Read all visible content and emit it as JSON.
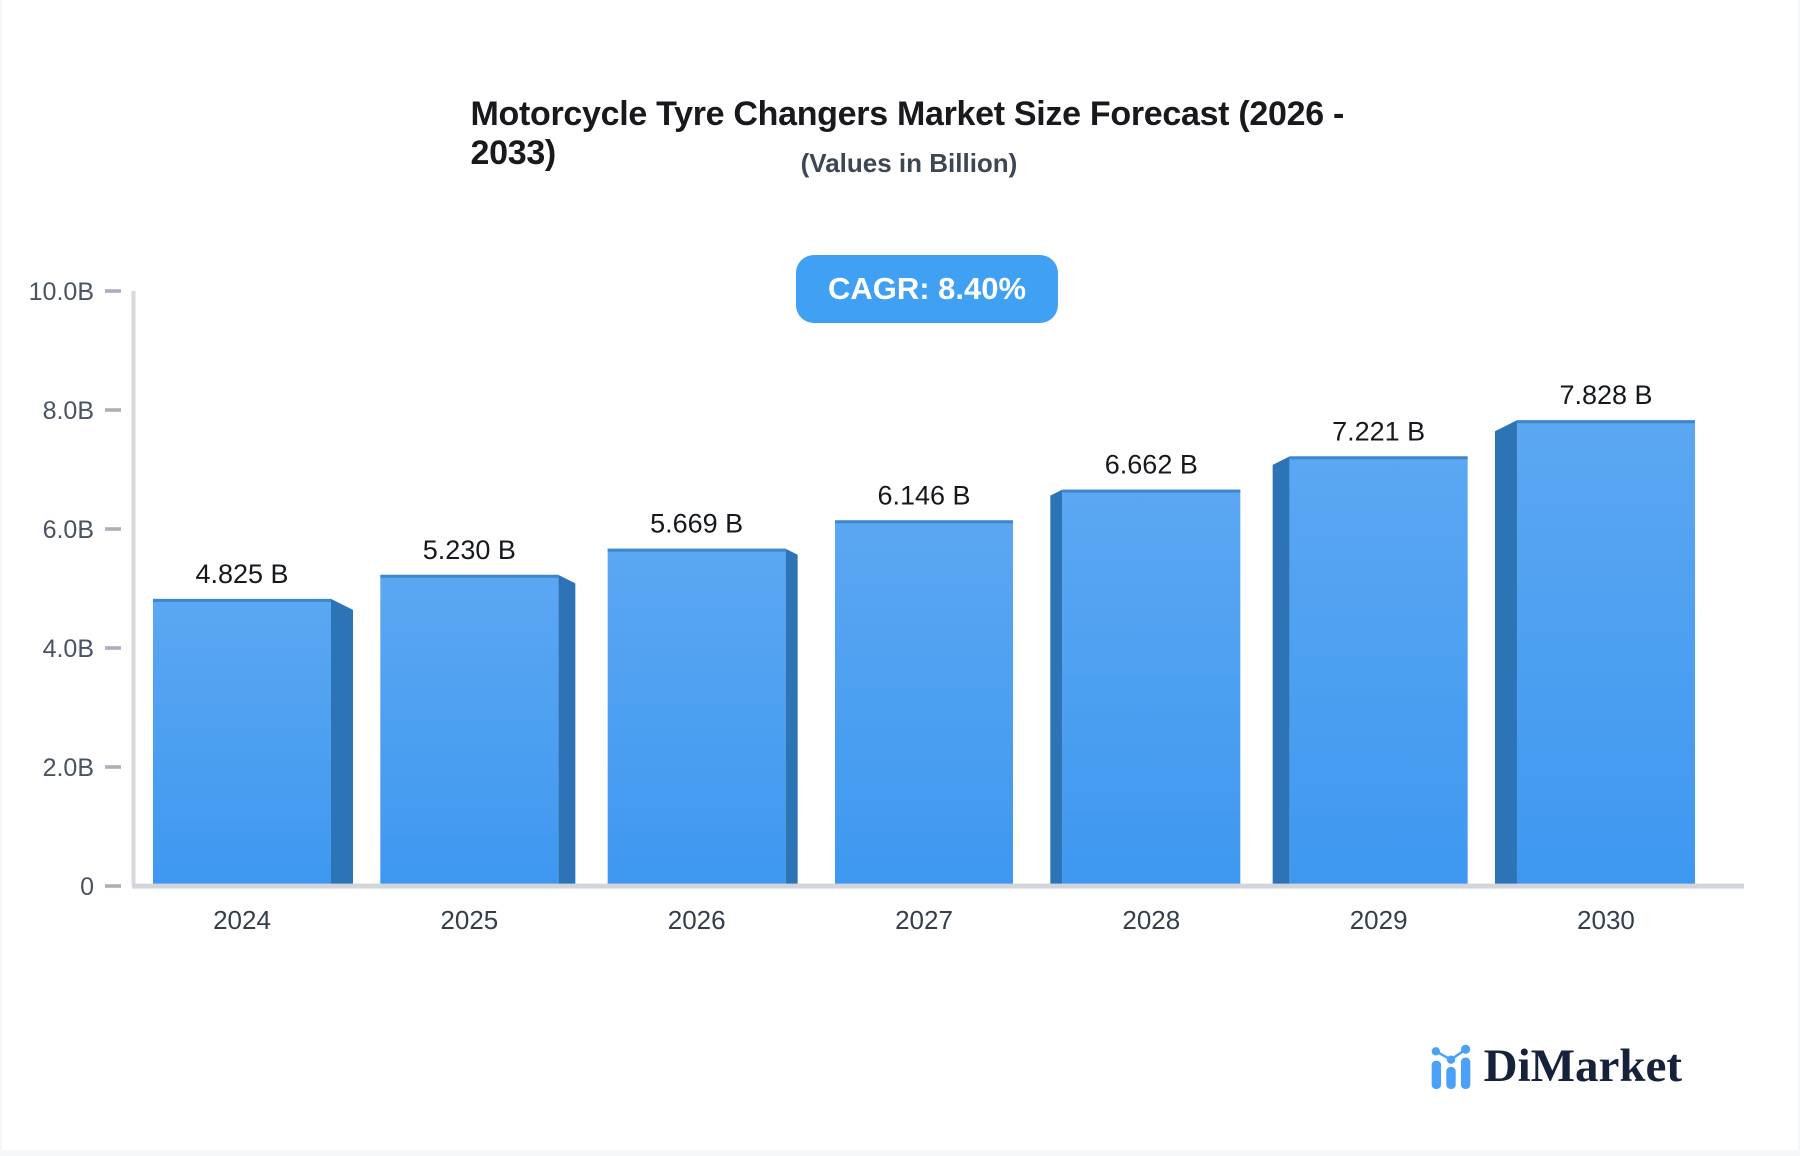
{
  "title": "Motorcycle Tyre Changers Market Size Forecast (2026 - 2033)",
  "subtitle": "(Values in Billion)",
  "badge": {
    "label": "CAGR: 8.40%",
    "color": "#3fa0f4"
  },
  "brand": {
    "name": "DiMarket",
    "icon": "mini-bar-chart-with-dots"
  },
  "chart_data": {
    "type": "bar",
    "title": "Motorcycle Tyre Changers Market Size Forecast (2026 - 2033)",
    "subtitle": "(Values in Billion)",
    "xlabel": "",
    "ylabel": "",
    "categories": [
      "2024",
      "2025",
      "2026",
      "2027",
      "2028",
      "2029",
      "2030"
    ],
    "values": [
      4.825,
      5.23,
      5.669,
      6.146,
      6.662,
      7.221,
      7.828
    ],
    "value_labels": [
      "4.825 B",
      "5.230 B",
      "5.669 B",
      "6.146 B",
      "6.662 B",
      "7.221 B",
      "7.828 B"
    ],
    "unit": "Billion",
    "ylim": [
      0,
      10
    ],
    "yticks": [
      {
        "value": 0,
        "label": "0"
      },
      {
        "value": 2,
        "label": "2.0B"
      },
      {
        "value": 4,
        "label": "4.0B"
      },
      {
        "value": 6,
        "label": "6.0B"
      },
      {
        "value": 8,
        "label": "8.0B"
      },
      {
        "value": 10,
        "label": "10.0B"
      }
    ],
    "grid": false,
    "legend": false,
    "style_3d": true,
    "colors": {
      "bar_face_top": "#5ba7f2",
      "bar_face_bottom": "#3e98f0",
      "bar_side": "#2d74b6",
      "bar_top_edge": "#4186cd",
      "axis_line": "#d6d9df",
      "baseline": "#d2d5db",
      "tick": "#a9b0bc",
      "y_label": "#4a5362",
      "x_label": "#343e4d",
      "value_label": "#15181d"
    }
  }
}
